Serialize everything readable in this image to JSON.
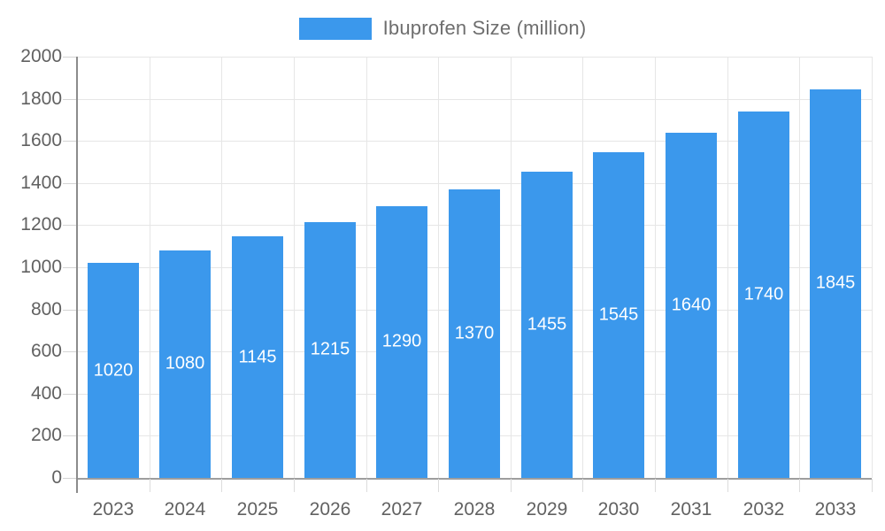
{
  "legend": {
    "swatch_icon": "series-color-swatch",
    "label": "Ibuprofen Size (million)"
  },
  "chart_data": {
    "type": "bar",
    "title": "",
    "xlabel": "",
    "ylabel": "",
    "categories": [
      "2023",
      "2024",
      "2025",
      "2026",
      "2027",
      "2028",
      "2029",
      "2030",
      "2031",
      "2032",
      "2033"
    ],
    "series": [
      {
        "name": "Ibuprofen Size (million)",
        "values": [
          1020,
          1080,
          1145,
          1215,
          1290,
          1370,
          1455,
          1545,
          1640,
          1740,
          1845
        ]
      }
    ],
    "value_labels_shown": true,
    "value_label_position": "inside-center",
    "ylim": [
      0,
      2000
    ],
    "ytick_step": 200,
    "ytick_labels": [
      "0",
      "200",
      "400",
      "600",
      "800",
      "1000",
      "1200",
      "1400",
      "1600",
      "1800",
      "2000"
    ],
    "grid": "horizontal-and-vertical",
    "legend_position": "top-center",
    "colors": {
      "bar": "#3b98ec",
      "value_label": "#ffffff",
      "axis_text": "#616161",
      "legend_text": "#6e6e6e",
      "gridline": "#e6e6e6",
      "axis_line": "#9e9e9e",
      "background": "#ffffff"
    }
  }
}
